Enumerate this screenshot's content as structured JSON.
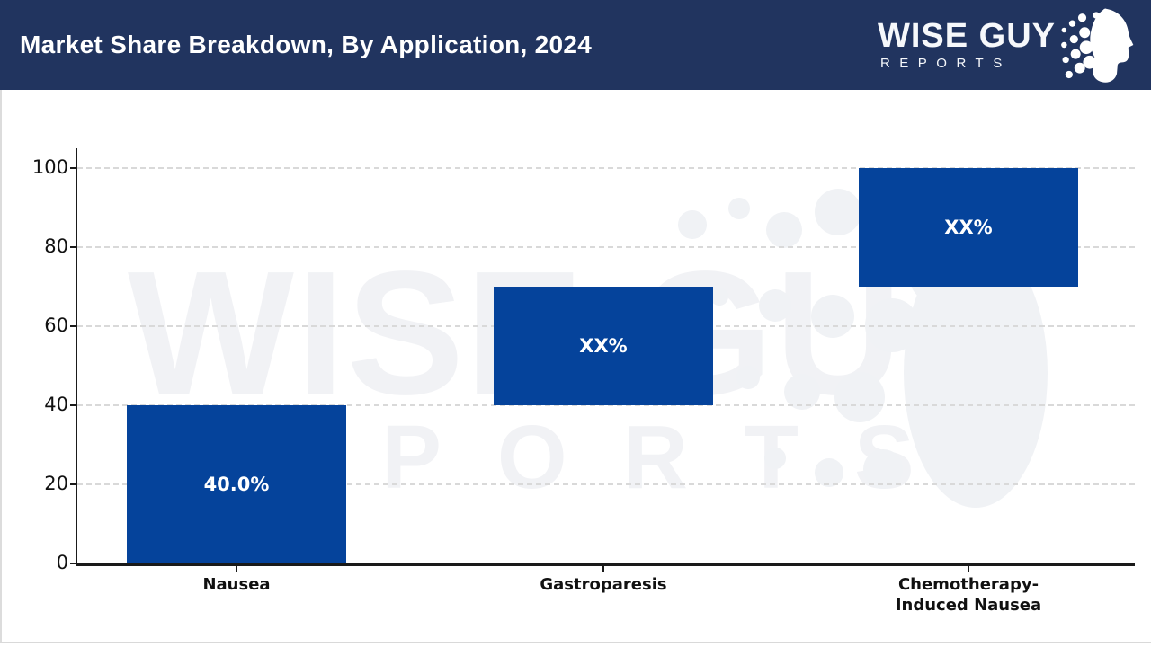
{
  "header": {
    "title": "Market Share Breakdown, By Application, 2024",
    "bg_color": "#21345f",
    "logo": {
      "line1": "WISE GUY",
      "line2": "REPORTS"
    }
  },
  "watermark": {
    "line1": "WISE GUY",
    "line2": "REPORTS"
  },
  "chart_data": {
    "type": "bar",
    "subtype": "floating-segment-waterfall",
    "title": "Market Share Breakdown, By Application, 2024",
    "categories": [
      "Nausea",
      "Gastroparesis",
      "Chemotherapy-\nInduced Nausea"
    ],
    "segments": [
      {
        "category": "Nausea",
        "start": 0,
        "end": 40,
        "label": "40.0%"
      },
      {
        "category": "Gastroparesis",
        "start": 40,
        "end": 70,
        "label": "XX%"
      },
      {
        "category": "Chemotherapy-Induced Nausea",
        "start": 70,
        "end": 100,
        "label": "XX%"
      }
    ],
    "ylim": [
      0,
      100
    ],
    "yticks": [
      0,
      20,
      40,
      60,
      80,
      100
    ],
    "xlabel": "",
    "ylabel": "",
    "grid": "horizontal-dashed",
    "legend": "none",
    "bar_color": "#05439b",
    "bar_label_color": "#ffffff",
    "axis_color": "#1a1a1a",
    "grid_color": "#d9d9d9"
  }
}
